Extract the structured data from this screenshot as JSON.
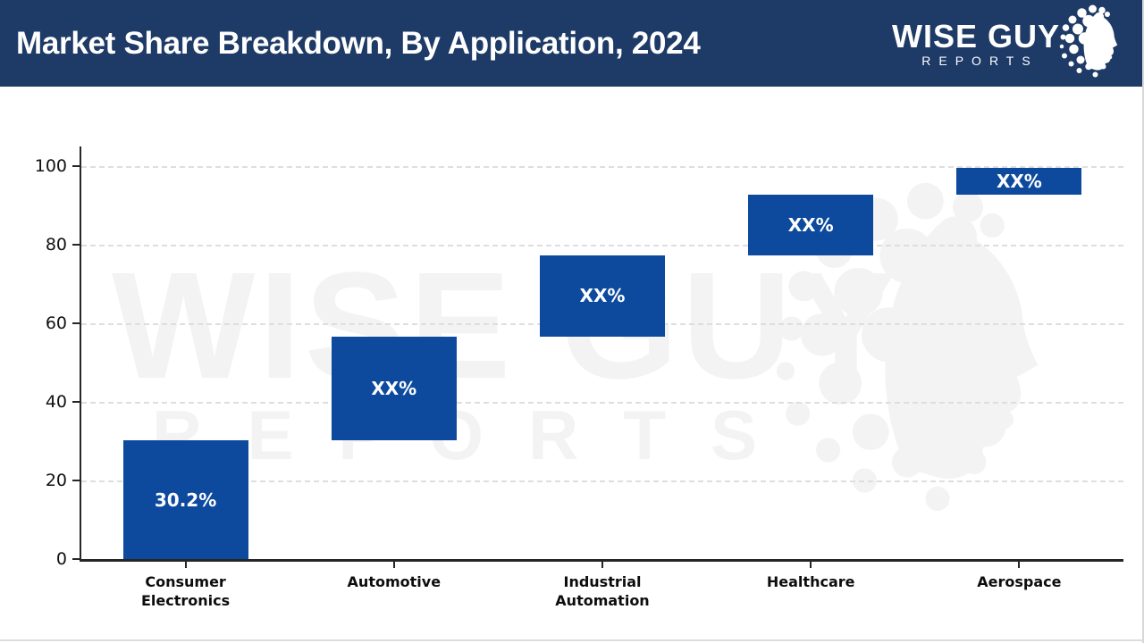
{
  "header": {
    "title": "Market Share Breakdown, By Application, 2024",
    "logo": {
      "line1": "WISE GUY",
      "line2": "REPORTS"
    }
  },
  "watermark": {
    "line1": "WISE GUY",
    "line2": "REPORTS"
  },
  "colors": {
    "header_bg": "#1e3a67",
    "bar": "#0d4a9d",
    "gridline": "#dedede",
    "axis": "#262626",
    "watermark": "#f3f3f3",
    "bar_label_text": "#ffffff"
  },
  "chart_data": {
    "type": "bar",
    "subtype": "waterfall",
    "title": "Market Share Breakdown, By Application, 2024",
    "categories": [
      "Consumer Electronics",
      "Automotive",
      "Industrial Automation",
      "Healthcare",
      "Aerospace"
    ],
    "segments": [
      {
        "category": "Consumer Electronics",
        "start": 0,
        "end": 30.2,
        "label": "30.2%"
      },
      {
        "category": "Automotive",
        "start": 30.2,
        "end": 56.6,
        "label": "XX%"
      },
      {
        "category": "Industrial Automation",
        "start": 56.6,
        "end": 77.3,
        "label": "XX%"
      },
      {
        "category": "Healthcare",
        "start": 77.3,
        "end": 92.7,
        "label": "XX%"
      },
      {
        "category": "Aerospace",
        "start": 92.7,
        "end": 99.5,
        "label": "XX%"
      }
    ],
    "yticks": [
      0,
      20,
      40,
      60,
      80,
      100
    ],
    "ylim": [
      0,
      105
    ],
    "xlabel": "",
    "ylabel": "",
    "grid": "dashed-horizontal",
    "legend": "none"
  }
}
